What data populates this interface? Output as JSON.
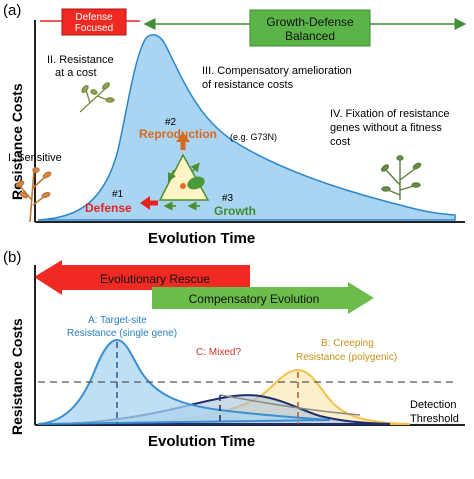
{
  "panel_a": {
    "label": "(a)",
    "y_axis_label": "Resistance Costs",
    "x_axis_label": "Evolution Time",
    "banner_defense": [
      "Defense",
      "Focused"
    ],
    "banner_balanced": [
      "Growth-Defense",
      "Balanced"
    ],
    "stage_2": [
      "II. Resistance",
      "at a cost"
    ],
    "stage_3": [
      "III. Compensatory amelioration",
      "of resistance costs"
    ],
    "example_mutation": "(e.g. G73N)",
    "stage_4": [
      "IV. Fixation of resistance",
      "genes without a fitness",
      "cost"
    ],
    "stage_1": "I. Sensitive",
    "triangle": {
      "n1": "#1",
      "defense": "Defense",
      "n2": "#2",
      "reproduction": "Reproduction",
      "n3": "#3",
      "growth": "Growth"
    },
    "colors": {
      "curve_fill": "#a9d4f2",
      "curve_stroke": "#2f86c8",
      "defense": "#e8231f",
      "balanced": "#5ab448",
      "reproduction": "#d86a1e"
    }
  },
  "panel_b": {
    "label": "(b)",
    "y_axis_label": "Resistance Costs",
    "x_axis_label": "Evolution Time",
    "rescue_arrow": "Evolutionary Rescue",
    "compensatory_arrow": "Compensatory Evolution",
    "curve_a_label": [
      "A: Target-site",
      "Resistance (single gene)"
    ],
    "curve_c_label": "C: Mixed?",
    "curve_b_label": [
      "B: Creeping",
      "Resistance (polygenic)"
    ],
    "detection_label": [
      "Detection",
      "Threshold"
    ],
    "colors": {
      "curve_a": "#3a8fd1",
      "curve_c": "#1f2d6e",
      "curve_b": "#f0c24a",
      "mixed_text": "#d0312d",
      "b_text": "#c8921a",
      "a_text": "#2b7fc0"
    }
  }
}
